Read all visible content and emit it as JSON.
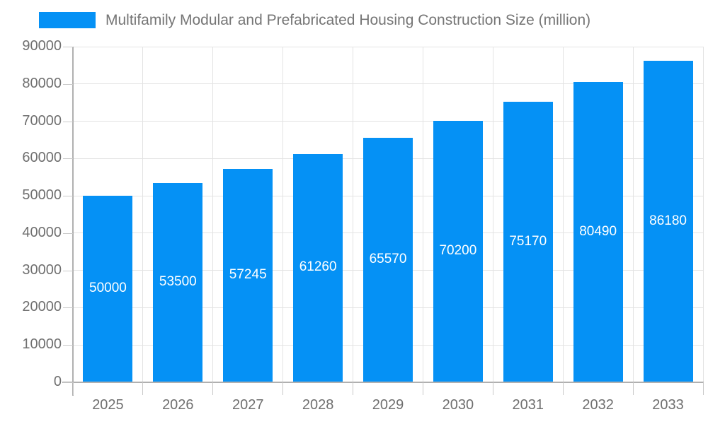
{
  "legend": {
    "label": "Multifamily Modular and Prefabricated Housing Construction Size (million)"
  },
  "colors": {
    "bar": "#0591F5",
    "bar_label_text": "#ffffff",
    "axis_text": "#6f6f6f",
    "legend_text": "#757575",
    "grid_line": "#e3e3e3",
    "axis_line": "#b0b0b0",
    "tick_line": "#c9c9c9",
    "background": "#ffffff"
  },
  "chart_data": {
    "type": "bar",
    "title": "Multifamily Modular and Prefabricated Housing Construction Size (million)",
    "categories": [
      "2025",
      "2026",
      "2027",
      "2028",
      "2029",
      "2030",
      "2031",
      "2032",
      "2033"
    ],
    "values": [
      50000,
      53500,
      57245,
      61260,
      65570,
      70200,
      75170,
      80490,
      86180
    ],
    "data_labels": [
      "50000",
      "53500",
      "57245",
      "61260",
      "65570",
      "70200",
      "75170",
      "80490",
      "86180"
    ],
    "xlabel": "",
    "ylabel": "",
    "ylim": [
      0,
      90000
    ],
    "y_ticks": [
      0,
      10000,
      20000,
      30000,
      40000,
      50000,
      60000,
      70000,
      80000,
      90000
    ],
    "grid": true,
    "legend_position": "top-left",
    "data_label_position": "inside-center"
  }
}
